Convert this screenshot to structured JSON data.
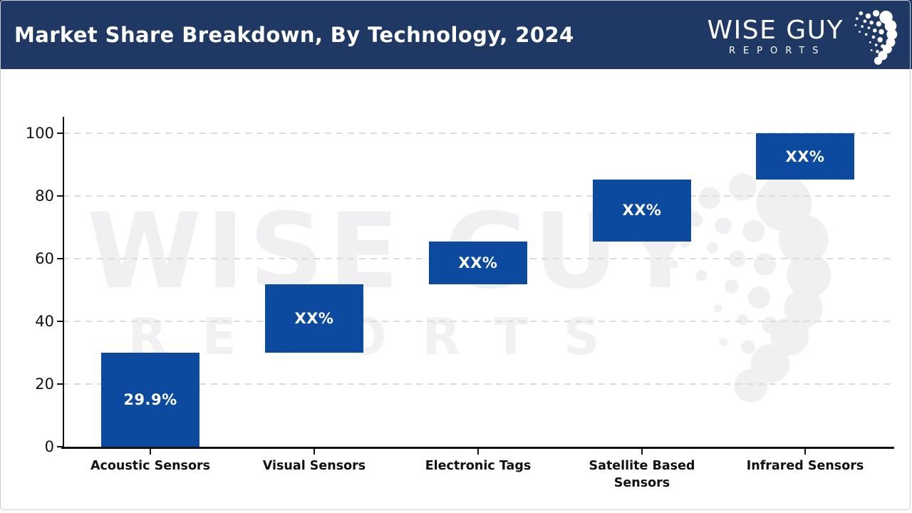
{
  "header": {
    "title": "Market Share Breakdown, By Technology, 2024",
    "bg_color": "#1f3864",
    "logo": {
      "line1": "WISE GUY",
      "line2": "REPORTS"
    }
  },
  "watermark": {
    "line1": "WISE GUY",
    "line2": "REPORTS"
  },
  "chart_data": {
    "type": "bar",
    "subtype": "waterfall-floating-bars",
    "title": "Market Share Breakdown, By Technology, 2024",
    "xlabel": "",
    "ylabel": "",
    "ylim": [
      0,
      100
    ],
    "yticks": [
      0,
      20,
      40,
      60,
      80,
      100
    ],
    "grid": "horizontal-dashed",
    "legend": "none",
    "bar_color": "#0b4a9e",
    "bar_label_color": "#ffffff",
    "categories": [
      "Acoustic Sensors",
      "Visual Sensors",
      "Electronic Tags",
      "Satellite Based Sensors",
      "Infrared Sensors"
    ],
    "tick_labels": [
      "Acoustic Sensors",
      "Visual Sensors",
      "Electronic Tags",
      "Satellite Based\nSensors",
      "Infrared Sensors"
    ],
    "segments": [
      {
        "category": "Acoustic Sensors",
        "start": 0,
        "end": 29.9,
        "label": "29.9%"
      },
      {
        "category": "Visual Sensors",
        "start": 29.9,
        "end": 51.8,
        "label": "XX%"
      },
      {
        "category": "Electronic Tags",
        "start": 51.8,
        "end": 65.5,
        "label": "XX%"
      },
      {
        "category": "Satellite Based Sensors",
        "start": 65.5,
        "end": 85.2,
        "label": "XX%"
      },
      {
        "category": "Infrared Sensors",
        "start": 85.2,
        "end": 100,
        "label": "XX%"
      }
    ]
  }
}
